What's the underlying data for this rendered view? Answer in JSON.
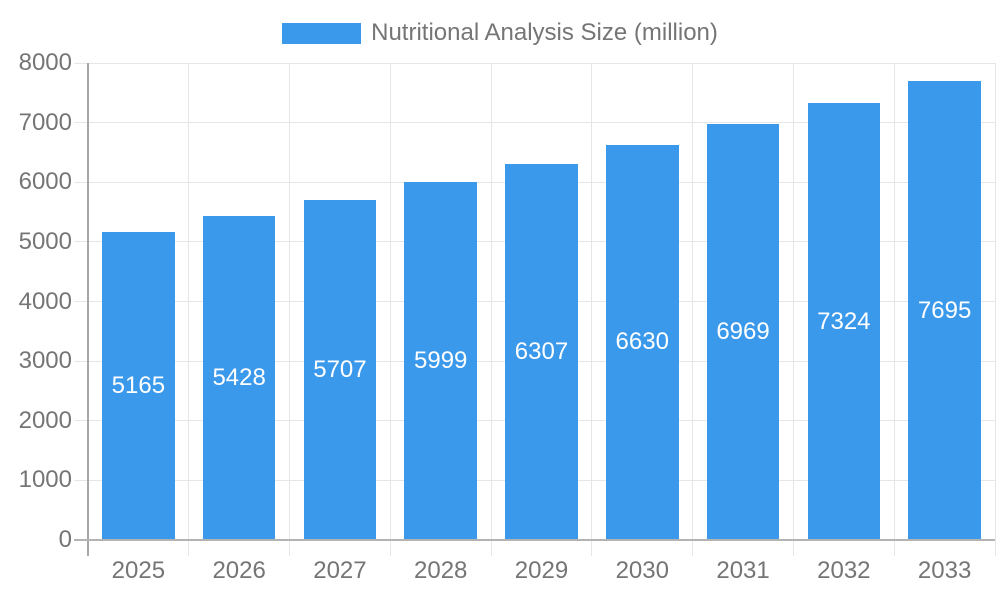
{
  "chart_data": {
    "type": "bar",
    "title": "Nutritional Analysis Size (million)",
    "categories": [
      "2025",
      "2026",
      "2027",
      "2028",
      "2029",
      "2030",
      "2031",
      "2032",
      "2033"
    ],
    "series": [
      {
        "name": "Nutritional Analysis Size (million)",
        "values": [
          5165,
          5428,
          5707,
          5999,
          6307,
          6630,
          6969,
          7324,
          7695
        ]
      }
    ],
    "xlabel": "",
    "ylabel": "",
    "ylim": [
      0,
      8000
    ],
    "y_ticks": [
      0,
      1000,
      2000,
      3000,
      4000,
      5000,
      6000,
      7000,
      8000
    ],
    "grid": "on",
    "legend_position": "top",
    "value_label_position": "inside-center",
    "colors": {
      "bar": "#3B99EC",
      "bar_label": "#FFFFFF",
      "axis_text": "#757575",
      "grid_line": "#E6E6E6",
      "y_axis_line": "#A6A6A6",
      "x_axis_line": "#B3B3B3",
      "background": "#FFFFFF"
    }
  }
}
